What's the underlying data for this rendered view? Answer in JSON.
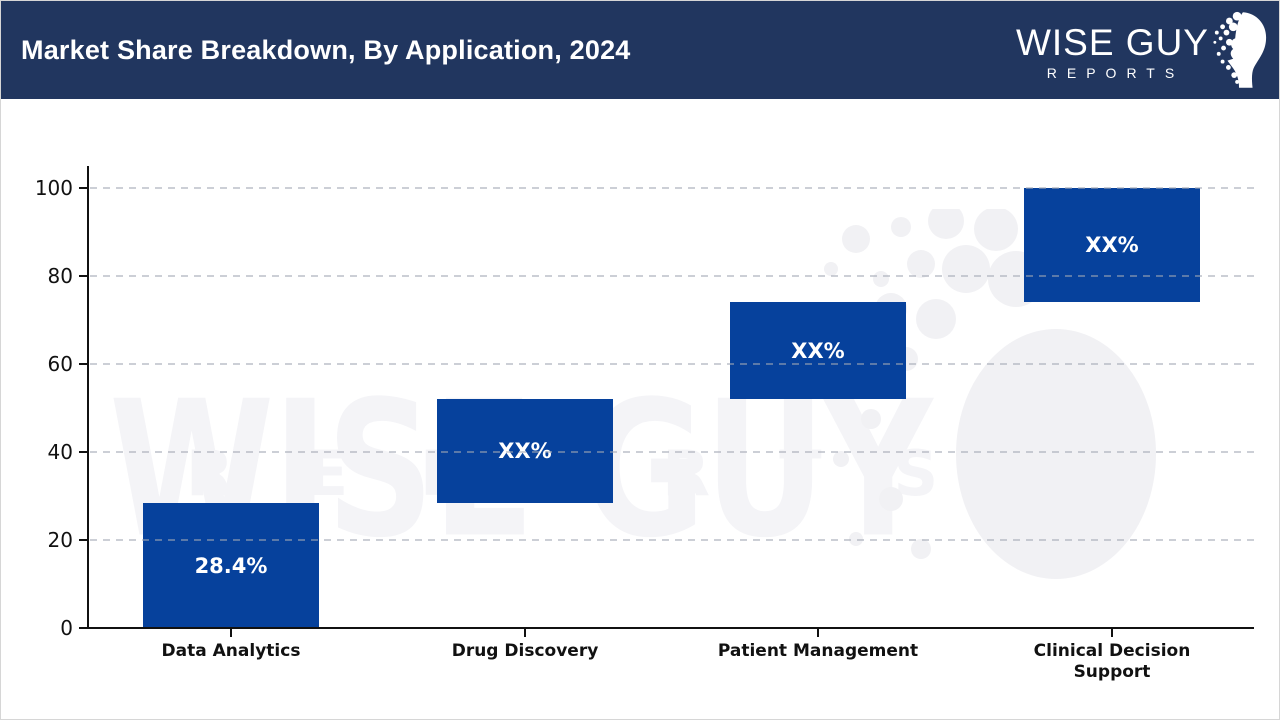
{
  "header": {
    "title": "Market Share Breakdown, By Application, 2024",
    "bg_color": "#21365f",
    "logo": {
      "line1": "WISE GUY",
      "line2": "REPORTS"
    }
  },
  "watermark": {
    "line1": "WISE GUY",
    "line2": "REPORTS"
  },
  "chart_data": {
    "type": "bar",
    "variant": "waterfall",
    "title": "Market Share Breakdown, By Application, 2024",
    "categories": [
      "Data Analytics",
      "Drug Discovery",
      "Patient Management",
      "Clinical Decision Support"
    ],
    "series": [
      {
        "name": "Market share (%)",
        "segments": [
          {
            "category": "Data Analytics",
            "start": 0,
            "end": 28.4,
            "label": "28.4%"
          },
          {
            "category": "Drug Discovery",
            "start": 28.4,
            "end": 52,
            "label": "XX%"
          },
          {
            "category": "Patient Management",
            "start": 52,
            "end": 74,
            "label": "XX%"
          },
          {
            "category": "Clinical Decision Support",
            "start": 74,
            "end": 100,
            "label": "XX%"
          }
        ]
      }
    ],
    "xlabel": "",
    "ylabel": "",
    "yticks": [
      0,
      20,
      40,
      60,
      80,
      100
    ],
    "ylim": [
      0,
      105
    ],
    "grid": "horizontal-dashed",
    "legend": "none",
    "bar_color": "#06419c",
    "bar_label_color": "#ffffff",
    "axis_color": "#111111"
  }
}
